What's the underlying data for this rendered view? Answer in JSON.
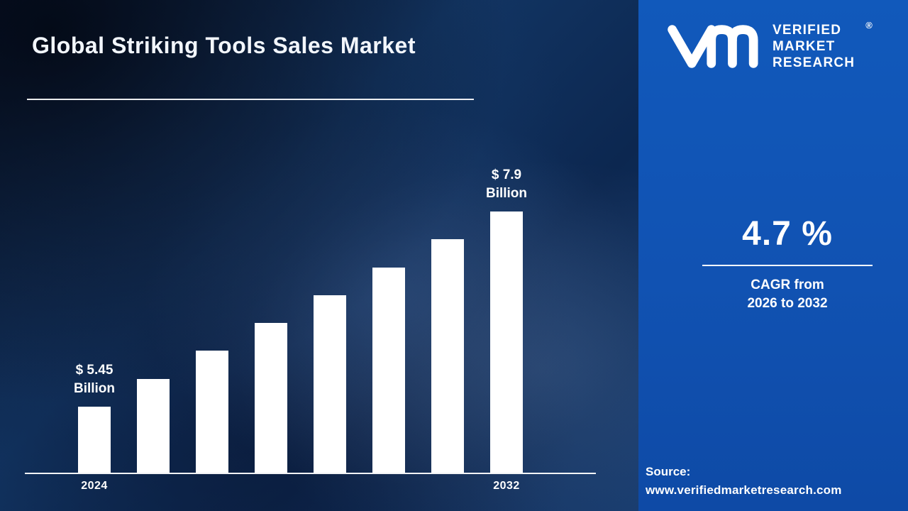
{
  "title": "Global Striking Tools Sales Market",
  "brand": {
    "lines": [
      "VERIFIED",
      "MARKET",
      "RESEARCH"
    ],
    "registered": "®"
  },
  "stat": {
    "value": "4.7 %",
    "caption_line1": "CAGR from",
    "caption_line2": "2026 to 2032"
  },
  "source": {
    "label": "Source:",
    "url": "www.verifiedmarketresearch.com"
  },
  "chart_data": {
    "type": "bar",
    "title": "Global Striking Tools Sales Market",
    "unit": "USD Billion",
    "categories": [
      "2024",
      "",
      "",
      "",
      "",
      "",
      "",
      "2032"
    ],
    "values": [
      5.45,
      5.8,
      6.15,
      6.5,
      6.85,
      7.2,
      7.55,
      7.9
    ],
    "bar_labels": [
      {
        "index": 0,
        "lines": [
          "$ 5.45",
          "Billion"
        ]
      },
      {
        "index": 7,
        "lines": [
          "$ 7.9",
          "Billion"
        ]
      }
    ],
    "visible_tick_labels": [
      "2024",
      "2032"
    ],
    "ylim": [
      5.0,
      8.2
    ],
    "bar_color": "#ffffff",
    "grid": false,
    "legend": false
  },
  "colors": {
    "left_background": "#0c2750",
    "panel_background": "#1153b3",
    "text": "#ffffff"
  }
}
